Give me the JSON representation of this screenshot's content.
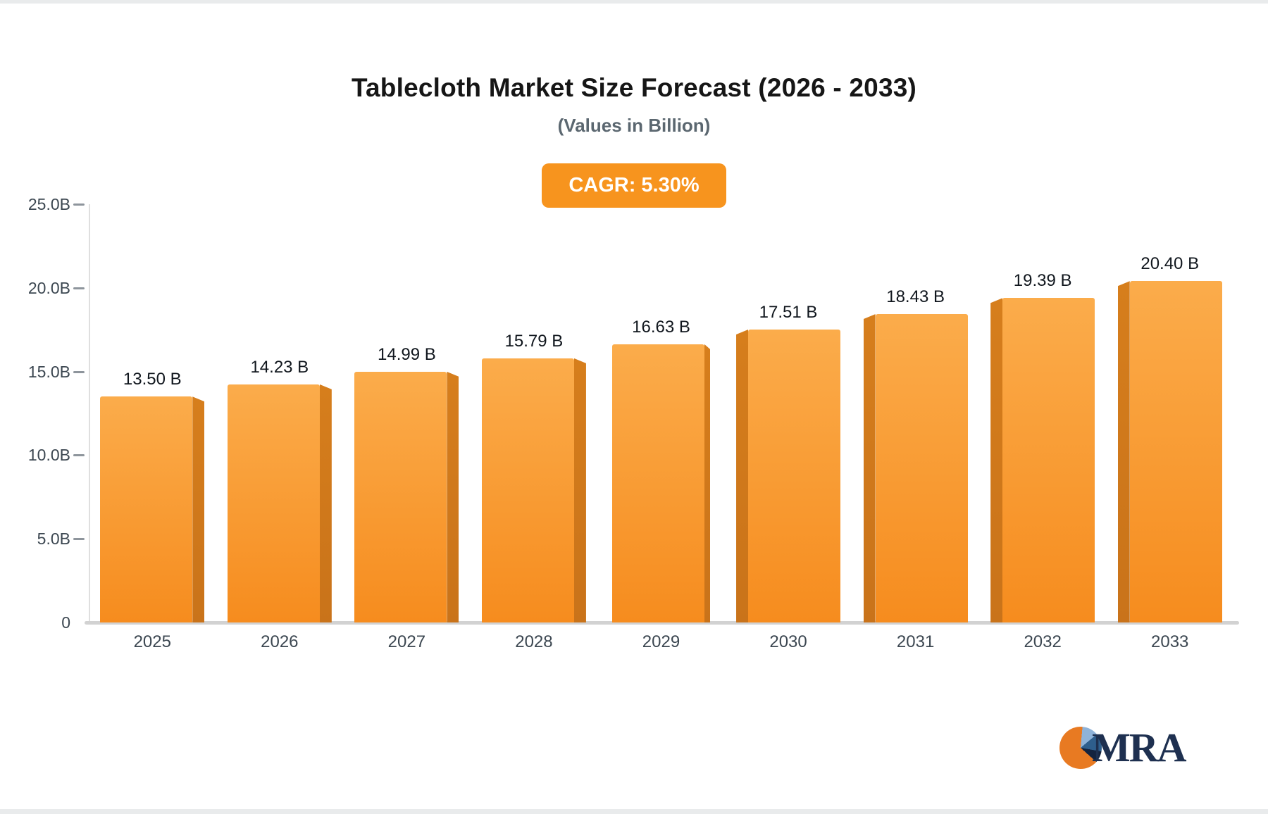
{
  "colors": {
    "accent_orange": "#F7941E",
    "bar_top": "#FBAC4B",
    "bar_bottom": "#F68C1E",
    "bar_side": "#C9731A",
    "title_text": "#161616",
    "subtitle_text": "#5B6770",
    "axis_text": "#3C4751",
    "value_text": "#10161D",
    "axis_line": "#DFDFDF",
    "baseline": "#D2D2D2",
    "logo_navy": "#1E3050",
    "footer_strip": "#E9EBEC"
  },
  "chart_data": {
    "type": "bar",
    "title": "Tablecloth Market Size Forecast (2026 - 2033)",
    "subtitle": "(Values in Billion)",
    "annotation": "CAGR: 5.30%",
    "categories": [
      "2025",
      "2026",
      "2027",
      "2028",
      "2029",
      "2030",
      "2031",
      "2032",
      "2033"
    ],
    "values": [
      13.5,
      14.23,
      14.99,
      15.79,
      16.63,
      17.51,
      18.43,
      19.39,
      20.4
    ],
    "value_labels": [
      "13.50 B",
      "14.23 B",
      "14.99 B",
      "15.79 B",
      "16.63 B",
      "17.51 B",
      "18.43 B",
      "19.39 B",
      "20.40 B"
    ],
    "xlabel": "",
    "ylabel": "",
    "ylim": [
      0,
      25
    ],
    "yticks": [
      {
        "value": 0,
        "label": "0"
      },
      {
        "value": 5,
        "label": "5.0B"
      },
      {
        "value": 10,
        "label": "10.0B"
      },
      {
        "value": 15,
        "label": "15.0B"
      },
      {
        "value": 20,
        "label": "20.0B"
      },
      {
        "value": 25,
        "label": "25.0B"
      }
    ],
    "grid": false,
    "legend": false
  },
  "logo": {
    "text": "MRA"
  }
}
